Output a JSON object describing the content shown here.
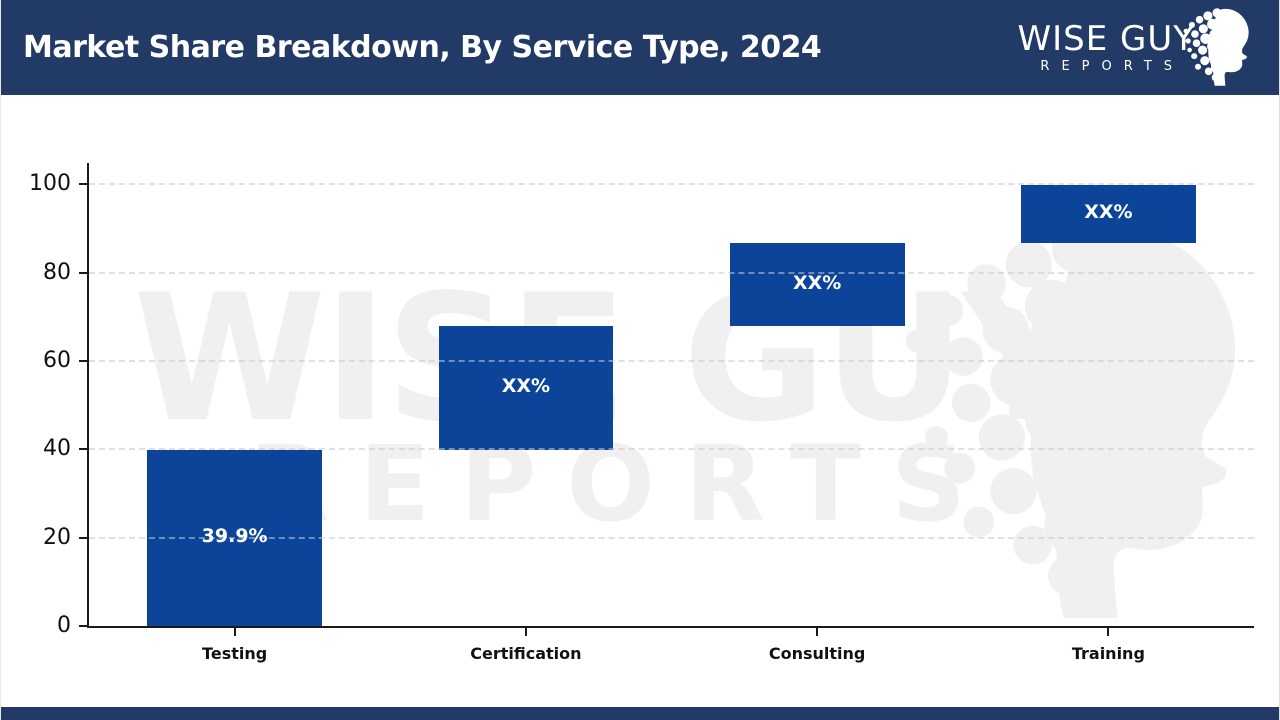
{
  "header": {
    "title": "Market Share Breakdown, By Service Type, 2024",
    "logo": {
      "line1": "WISE GUY",
      "line2": "REPORTS"
    }
  },
  "watermark": {
    "line1": "WISE GUY",
    "line2": "REPORTS"
  },
  "colors": {
    "header_bg": "#213a66",
    "footer_bg": "#213a66",
    "bar": "#0c4499",
    "bar_label": "#ffffff",
    "grid": "#c9c9c9",
    "axis": "#1a1a1a",
    "watermark": "#f0f0f0"
  },
  "chart_data": {
    "type": "bar",
    "subtype": "waterfall",
    "title": "Market Share Breakdown, By Service Type, 2024",
    "xlabel": "",
    "ylabel": "",
    "categories": [
      "Testing",
      "Certification",
      "Consulting",
      "Training"
    ],
    "segments": [
      {
        "category": "Testing",
        "start": 0,
        "end": 39.9,
        "label": "39.9%"
      },
      {
        "category": "Certification",
        "start": 39.9,
        "end": 67.8,
        "label": "XX%"
      },
      {
        "category": "Consulting",
        "start": 67.8,
        "end": 86.6,
        "label": "XX%"
      },
      {
        "category": "Training",
        "start": 86.6,
        "end": 99.8,
        "label": "XX%"
      }
    ],
    "yticks": [
      0,
      20,
      40,
      60,
      80,
      100
    ],
    "ylim": [
      0,
      104.8
    ],
    "grid": "horizontal-dashed",
    "legend": "none"
  }
}
